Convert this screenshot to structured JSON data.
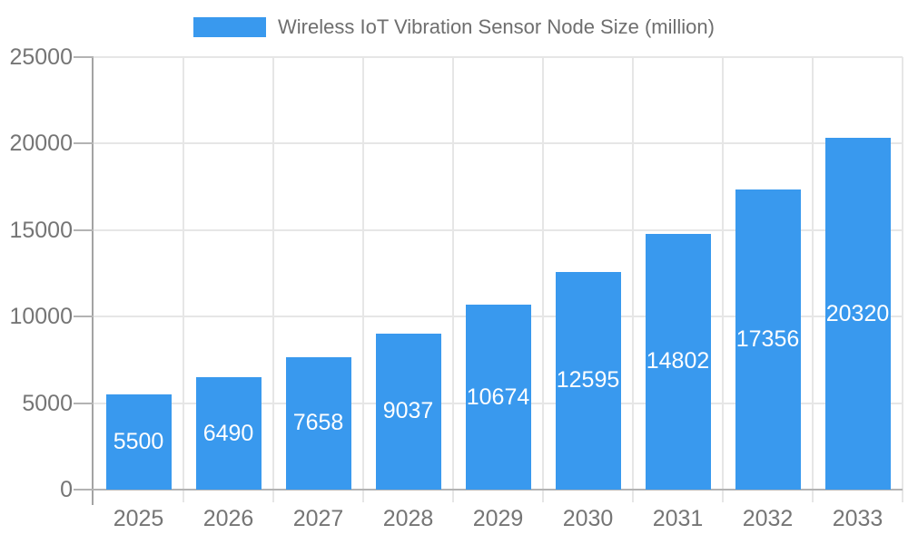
{
  "chart_data": {
    "type": "bar",
    "title": "Wireless IoT Vibration Sensor Node Size (million)",
    "categories": [
      "2025",
      "2026",
      "2027",
      "2028",
      "2029",
      "2030",
      "2031",
      "2032",
      "2033"
    ],
    "values": [
      5500,
      6490,
      7658,
      9037,
      10674,
      12595,
      14802,
      17356,
      20320
    ],
    "series_name": "Wireless IoT Vibration Sensor Node Size (million)",
    "xlabel": "",
    "ylabel": "",
    "ylim": [
      0,
      25000
    ],
    "y_ticks": [
      0,
      5000,
      10000,
      15000,
      20000,
      25000
    ],
    "grid": "on",
    "legend_position": "top-center",
    "colors": {
      "bar_fill": "#3999ee",
      "bar_value_label": "#ffffff",
      "axis_text": "#757575",
      "legend_text": "#6e6e6e",
      "gridline": "#e6e6e6",
      "axis_line": "#a3a3a3"
    }
  }
}
